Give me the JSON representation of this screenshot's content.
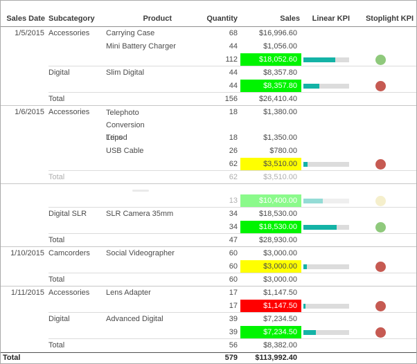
{
  "table": {
    "columns": [
      {
        "id": "sales_date",
        "label": "Sales Date"
      },
      {
        "id": "subcategory",
        "label": "Subcategory"
      },
      {
        "id": "product",
        "label": "Product"
      },
      {
        "id": "quantity",
        "label": "Quantity"
      },
      {
        "id": "sales",
        "label": "Sales"
      },
      {
        "id": "linear_kpi",
        "label": "Linear KPI"
      },
      {
        "id": "stoplight_kpi",
        "label": "Stoplight KPI"
      }
    ],
    "rows": [
      {
        "type": "detail",
        "date": "1/5/2015",
        "subcategory": "Accessories",
        "product": "Carrying Case",
        "quantity": "68",
        "sales": "$16,996.60"
      },
      {
        "type": "detail",
        "product": "Mini Battery Charger",
        "quantity": "44",
        "sales": "$1,056.00"
      },
      {
        "type": "subtotal",
        "quantity": "112",
        "sales": "$18,052.60",
        "sales_bg": "green",
        "kpi_ratio": 0.7,
        "stoplight": "green",
        "border": "part"
      },
      {
        "type": "detail",
        "subcategory": "Digital",
        "product": "Slim Digital",
        "quantity": "44",
        "sales": "$8,357.80"
      },
      {
        "type": "subtotal",
        "quantity": "44",
        "sales": "$8,357.80",
        "sales_bg": "green",
        "kpi_ratio": 0.35,
        "stoplight": "red",
        "border": "part"
      },
      {
        "type": "group_total",
        "label": "Total",
        "quantity": "156",
        "sales": "$26,410.40",
        "border": "full"
      },
      {
        "type": "detail",
        "date": "1/6/2015",
        "subcategory": "Accessories",
        "product": "Telephoto Conversion Lens",
        "wrap": true,
        "quantity": "18",
        "sales": "$1,380.00"
      },
      {
        "type": "detail",
        "product": "Tripod",
        "quantity": "18",
        "sales": "$1,350.00"
      },
      {
        "type": "detail",
        "product": "USB Cable",
        "quantity": "26",
        "sales": "$780.00"
      },
      {
        "type": "subtotal",
        "quantity": "62",
        "sales": "$3,510.00",
        "sales_bg": "yellow",
        "kpi_ratio": 0.09,
        "stoplight": "red",
        "border": "part"
      },
      {
        "type": "group_total",
        "label": "Total",
        "quantity": "62",
        "sales": "$3,510.00",
        "border": "full",
        "faded": true
      },
      {
        "type": "spacer"
      },
      {
        "type": "subtotal",
        "quantity": "13",
        "sales": "$10,400.00",
        "sales_bg": "green",
        "kpi_ratio": 0.42,
        "stoplight": "yellow",
        "border": "part",
        "faded": true
      },
      {
        "type": "detail",
        "subcategory": "Digital SLR",
        "product": "SLR Camera 35mm",
        "quantity": "34",
        "sales": "$18,530.00"
      },
      {
        "type": "subtotal",
        "quantity": "34",
        "sales": "$18,530.00",
        "sales_bg": "green",
        "kpi_ratio": 0.72,
        "stoplight": "green",
        "border": "part"
      },
      {
        "type": "group_total",
        "label": "Total",
        "quantity": "47",
        "sales": "$28,930.00",
        "border": "full"
      },
      {
        "type": "detail",
        "date": "1/10/2015",
        "subcategory": "Camcorders",
        "product": "Social Videographer",
        "quantity": "60",
        "sales": "$3,000.00"
      },
      {
        "type": "subtotal",
        "quantity": "60",
        "sales": "$3,000.00",
        "sales_bg": "yellow",
        "kpi_ratio": 0.08,
        "stoplight": "red",
        "border": "part"
      },
      {
        "type": "group_total",
        "label": "Total",
        "quantity": "60",
        "sales": "$3,000.00",
        "border": "full"
      },
      {
        "type": "detail",
        "date": "1/11/2015",
        "subcategory": "Accessories",
        "product": "Lens Adapter",
        "quantity": "17",
        "sales": "$1,147.50"
      },
      {
        "type": "subtotal",
        "quantity": "17",
        "sales": "$1,147.50",
        "sales_bg": "red",
        "kpi_ratio": 0.05,
        "stoplight": "red",
        "border": "part"
      },
      {
        "type": "detail",
        "subcategory": "Digital",
        "product": "Advanced Digital",
        "quantity": "39",
        "sales": "$7,234.50"
      },
      {
        "type": "subtotal",
        "quantity": "39",
        "sales": "$7,234.50",
        "sales_bg": "green",
        "kpi_ratio": 0.27,
        "stoplight": "red",
        "border": "part"
      },
      {
        "type": "group_total",
        "label": "Total",
        "quantity": "56",
        "sales": "$8,382.00"
      },
      {
        "type": "grand_total",
        "label": "Total",
        "quantity": "579",
        "sales": "$113,992.40"
      }
    ]
  },
  "colors": {
    "sales_green": "#00F400",
    "sales_yellow": "#FFFF00",
    "sales_red": "#FF0000",
    "kpi_bar_fill": "#14B3A6",
    "kpi_bar_track": "#DCDCDC",
    "stoplight_green": "#8FC97C",
    "stoplight_yellow": "#E9DC8E",
    "stoplight_red": "#C65A52",
    "text": "#4A4A4A",
    "header_text": "#3B3B3B"
  }
}
